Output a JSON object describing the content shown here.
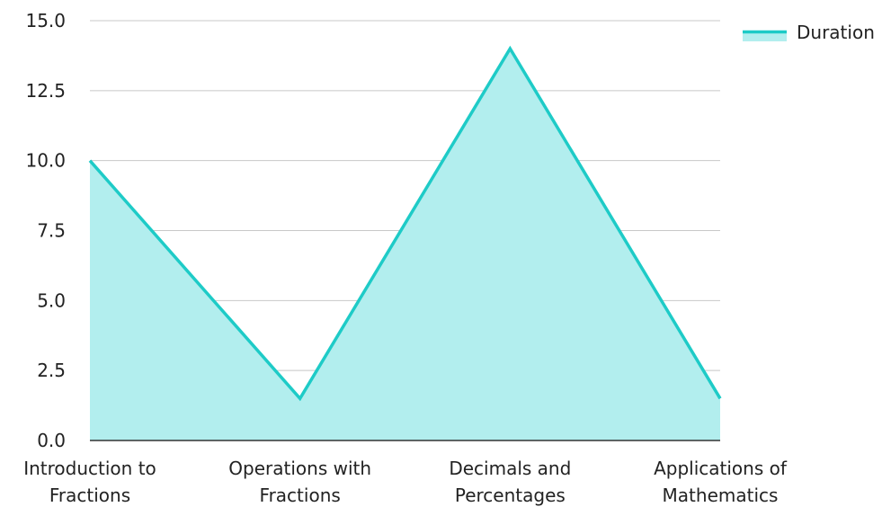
{
  "chart_data": {
    "type": "area",
    "categories": [
      [
        "Introduction to",
        "Fractions"
      ],
      [
        "Operations with",
        "Fractions"
      ],
      [
        "Decimals and",
        "Percentages"
      ],
      [
        "Applications of",
        "Mathematics"
      ]
    ],
    "series": [
      {
        "name": "Duration",
        "values": [
          10,
          1.5,
          14,
          1.5
        ]
      }
    ],
    "ylim": [
      0,
      15
    ],
    "yticks": [
      "0.0",
      "2.5",
      "5.0",
      "7.5",
      "10.0",
      "12.5",
      "15.0"
    ],
    "grid": true,
    "legend": "top-right",
    "colors": {
      "line": "#1ecbc7",
      "fill": "#b2eeee"
    }
  }
}
